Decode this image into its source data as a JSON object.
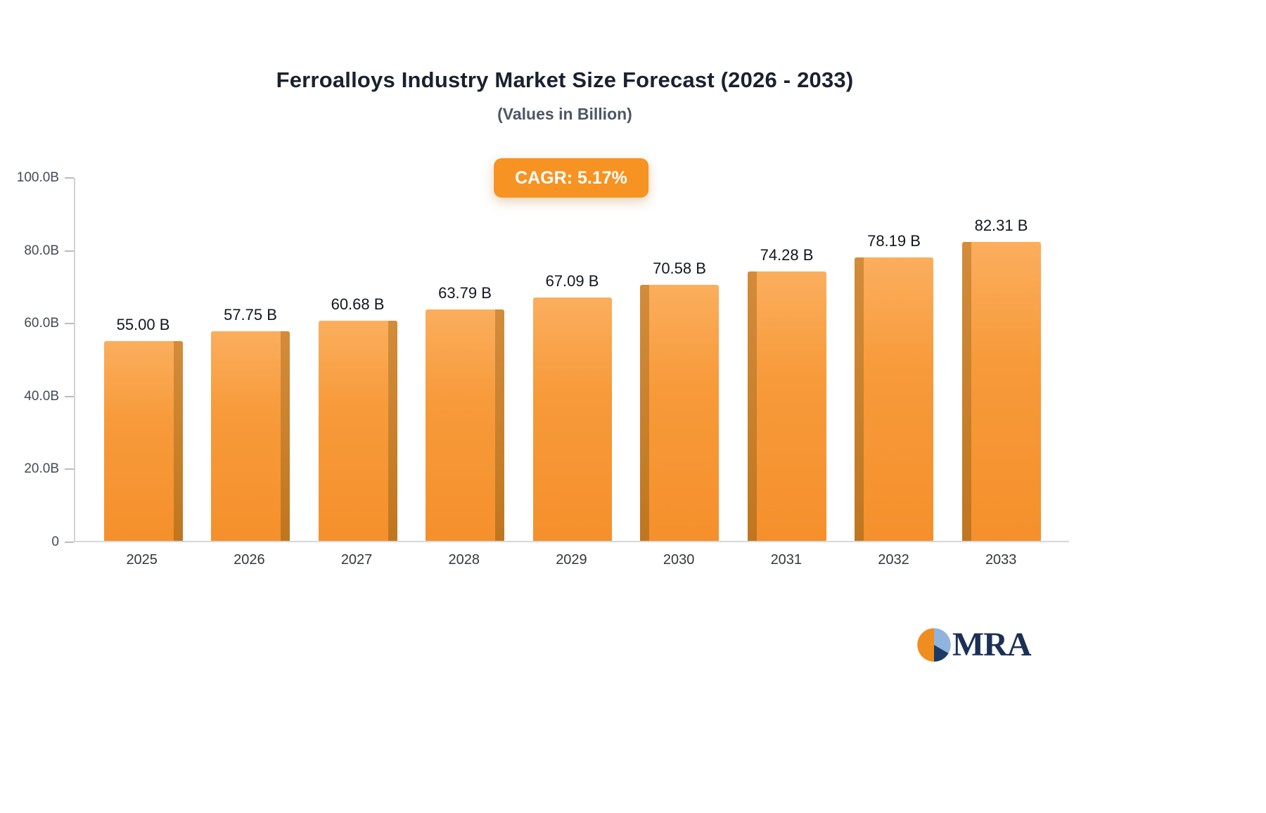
{
  "chart": {
    "title": "Ferroalloys Industry Market Size Forecast (2026 - 2033)",
    "subtitle": "(Values in Billion)",
    "badge": "CAGR: 5.17%"
  },
  "logo": {
    "text": "MRA"
  },
  "chart_data": {
    "type": "bar",
    "title": "Ferroalloys Industry Market Size Forecast (2026 - 2033)",
    "subtitle": "(Values in Billion)",
    "annotation": "CAGR: 5.17%",
    "categories": [
      "2025",
      "2026",
      "2027",
      "2028",
      "2029",
      "2030",
      "2031",
      "2032",
      "2033"
    ],
    "values": [
      55.0,
      57.75,
      60.68,
      63.79,
      67.09,
      70.58,
      74.28,
      78.19,
      82.31
    ],
    "value_labels": [
      "55.00 B",
      "57.75 B",
      "60.68 B",
      "63.79 B",
      "67.09 B",
      "70.58 B",
      "74.28 B",
      "78.19 B",
      "82.31 B"
    ],
    "unit": "Billion",
    "xlabel": "",
    "ylabel": "",
    "ylim": [
      0,
      100
    ],
    "y_ticks": [
      {
        "value": 0,
        "label": "0"
      },
      {
        "value": 20,
        "label": "20.0B"
      },
      {
        "value": 40,
        "label": "40.0B"
      },
      {
        "value": 60,
        "label": "60.0B"
      },
      {
        "value": 80,
        "label": "80.0B"
      },
      {
        "value": 100,
        "label": "100.0B"
      }
    ],
    "grid": false,
    "legend": false,
    "colors": {
      "bar_top": "#fbae5d",
      "bar_bottom": "#f5902c",
      "bar_side": "#c0761f",
      "accent_badge": "#f79322",
      "logo_orange": "#ef8d1f",
      "logo_light_blue": "#8fb4dd",
      "logo_navy": "#1d3a66"
    }
  }
}
